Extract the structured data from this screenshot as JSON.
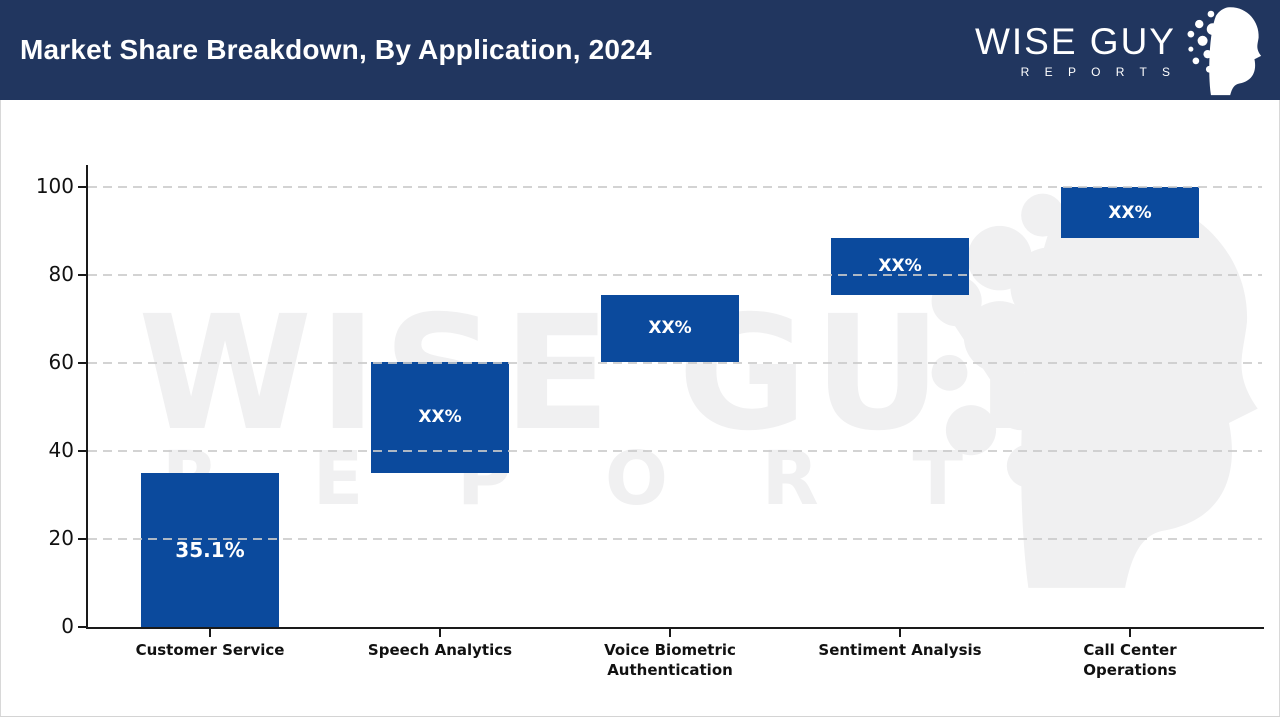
{
  "header": {
    "title": "Market Share Breakdown, By Application, 2024",
    "logo_line1": "WISE GUY",
    "logo_line2": "R E P O R T S"
  },
  "watermark": {
    "line1": "WISE GUY",
    "line2": "R E P O R T S"
  },
  "colors": {
    "header_bg": "#21365f",
    "bar_fill": "#0b4a9d",
    "grid_line": "#cbcbcb",
    "axis_line": "#1a1a1a",
    "bar_label_text": "#ffffff",
    "watermark_gray": "#f0f0f1"
  },
  "chart_data": {
    "type": "bar",
    "subtype": "waterfall",
    "title": "Market Share Breakdown, By Application, 2024",
    "categories": [
      "Customer Service",
      "Speech Analytics",
      "Voice Biometric Authentication",
      "Sentiment Analysis",
      "Call Center Operations"
    ],
    "segments": [
      {
        "category": "Customer Service",
        "start": 0,
        "end": 35.1,
        "label": "35.1%"
      },
      {
        "category": "Speech Analytics",
        "start": 35.1,
        "end": 60.2,
        "label": "XX%"
      },
      {
        "category": "Voice Biometric Authentication",
        "start": 60.2,
        "end": 75.5,
        "label": "XX%"
      },
      {
        "category": "Sentiment Analysis",
        "start": 75.5,
        "end": 88.4,
        "label": "XX%"
      },
      {
        "category": "Call Center Operations",
        "start": 88.4,
        "end": 100.0,
        "label": "XX%"
      }
    ],
    "ylim": [
      0,
      100
    ],
    "yticks": [
      0,
      20,
      40,
      60,
      80,
      100
    ],
    "grid": "horizontal-dashed",
    "legend": "none"
  }
}
